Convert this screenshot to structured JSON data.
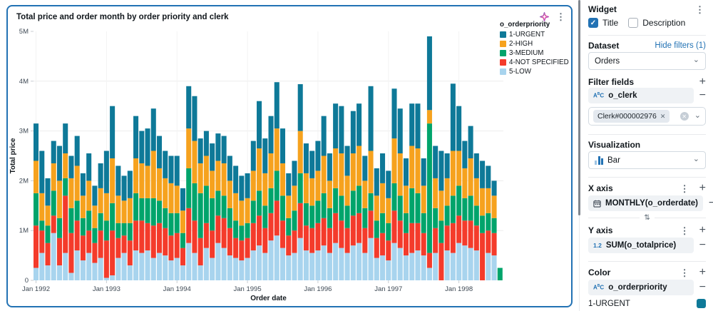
{
  "card": {
    "title": "Total price and order month by order priority and clerk"
  },
  "chart_data": {
    "type": "bar",
    "stacked": true,
    "title": "Total price and order month by order priority and clerk",
    "xlabel": "Order date",
    "ylabel": "Total price",
    "unit": "millions",
    "ylim": [
      0,
      5000000
    ],
    "y_tick_labels": [
      "0",
      "1M",
      "2M",
      "3M",
      "4M",
      "5M"
    ],
    "x_tick_every": 12,
    "x_tick_labels": [
      "Jan 1992",
      "Jan 1993",
      "Jan 1994",
      "Jan 1995",
      "Jan 1996",
      "Jan 1997",
      "Jan 1998"
    ],
    "legend_title": "o_orderpriority",
    "legend_position": "right",
    "grid": true,
    "x": [
      "1992-01",
      "1992-02",
      "1992-03",
      "1992-04",
      "1992-05",
      "1992-06",
      "1992-07",
      "1992-08",
      "1992-09",
      "1992-10",
      "1992-11",
      "1992-12",
      "1993-01",
      "1993-02",
      "1993-03",
      "1993-04",
      "1993-05",
      "1993-06",
      "1993-07",
      "1993-08",
      "1993-09",
      "1993-10",
      "1993-11",
      "1993-12",
      "1994-01",
      "1994-02",
      "1994-03",
      "1994-04",
      "1994-05",
      "1994-06",
      "1994-07",
      "1994-08",
      "1994-09",
      "1994-10",
      "1994-11",
      "1994-12",
      "1995-01",
      "1995-02",
      "1995-03",
      "1995-04",
      "1995-05",
      "1995-06",
      "1995-07",
      "1995-08",
      "1995-09",
      "1995-10",
      "1995-11",
      "1995-12",
      "1996-01",
      "1996-02",
      "1996-03",
      "1996-04",
      "1996-05",
      "1996-06",
      "1996-07",
      "1996-08",
      "1996-09",
      "1996-10",
      "1996-11",
      "1996-12",
      "1997-01",
      "1997-02",
      "1997-03",
      "1997-04",
      "1997-05",
      "1997-06",
      "1997-07",
      "1997-08",
      "1997-09",
      "1997-10",
      "1997-11",
      "1997-12",
      "1998-01",
      "1998-02",
      "1998-03",
      "1998-04",
      "1998-05",
      "1998-06",
      "1998-07",
      "1998-08"
    ],
    "stack_bottom_to_top": [
      "5-LOW",
      "4-NOT SPECIFIED",
      "3-MEDIUM",
      "2-HIGH",
      "1-URGENT"
    ],
    "series": [
      {
        "name": "1-URGENT",
        "color": "#0e7998",
        "values": [
          0.75,
          0.85,
          0.55,
          0.45,
          0.7,
          0.6,
          0.45,
          0.6,
          0.45,
          0.55,
          0.4,
          0.5,
          0.85,
          1.05,
          0.6,
          0.5,
          0.55,
          0.85,
          0.65,
          0.75,
          0.85,
          0.65,
          0.55,
          0.55,
          0.6,
          0.45,
          0.85,
          0.9,
          0.5,
          0.5,
          0.55,
          0.55,
          0.55,
          0.5,
          0.55,
          0.5,
          0.5,
          0.6,
          0.95,
          0.7,
          0.75,
          0.93,
          0.7,
          0.45,
          0.5,
          0.94,
          0.6,
          0.55,
          0.6,
          0.8,
          0.55,
          0.9,
          0.95,
          0.6,
          0.85,
          0.85,
          0.5,
          1.3,
          0.55,
          0.6,
          0.55,
          1.0,
          0.9,
          0.55,
          0.85,
          0.9,
          0.55,
          1.48,
          0.65,
          0.8,
          0.5,
          1.35,
          0.9,
          0.55,
          0.65,
          0.5,
          0.55,
          0.45,
          0.3,
          0.0
        ]
      },
      {
        "name": "2-HIGH",
        "color": "#f6a21e",
        "values": [
          0.65,
          0.55,
          0.4,
          0.55,
          0.75,
          0.5,
          0.6,
          0.7,
          0.45,
          0.6,
          0.45,
          0.5,
          0.55,
          0.9,
          0.55,
          0.45,
          0.5,
          0.7,
          0.7,
          0.65,
          0.95,
          0.65,
          0.6,
          0.6,
          0.55,
          0.45,
          0.8,
          0.85,
          0.6,
          0.6,
          0.55,
          0.6,
          0.65,
          0.55,
          0.55,
          0.5,
          0.5,
          0.6,
          0.85,
          0.65,
          0.7,
          0.85,
          0.65,
          0.45,
          0.5,
          0.85,
          0.6,
          0.55,
          0.6,
          0.75,
          0.55,
          0.8,
          0.85,
          0.6,
          0.75,
          0.8,
          0.55,
          0.85,
          0.5,
          0.6,
          0.5,
          0.9,
          0.85,
          0.55,
          0.85,
          0.9,
          0.55,
          0.27,
          0.6,
          0.6,
          0.55,
          0.9,
          0.7,
          0.6,
          0.75,
          0.55,
          0.55,
          0.5,
          0.45,
          0.0
        ]
      },
      {
        "name": "3-MEDIUM",
        "color": "#00a46b",
        "values": [
          0.65,
          0.2,
          0.35,
          0.5,
          0.4,
          0.35,
          0.5,
          0.4,
          0.35,
          0.4,
          0.3,
          0.35,
          0.4,
          0.55,
          0.3,
          0.25,
          0.35,
          0.55,
          0.45,
          0.5,
          0.55,
          0.45,
          0.4,
          0.45,
          0.4,
          0.3,
          0.8,
          0.75,
          0.9,
          0.75,
          0.65,
          0.5,
          0.45,
          0.4,
          0.35,
          0.3,
          0.3,
          0.45,
          0.5,
          0.45,
          0.5,
          0.6,
          0.5,
          0.35,
          0.4,
          0.6,
          0.45,
          0.45,
          0.45,
          0.5,
          0.4,
          0.5,
          0.5,
          0.45,
          0.5,
          0.55,
          0.4,
          0.35,
          0.35,
          0.4,
          0.35,
          0.55,
          0.5,
          0.4,
          0.7,
          0.6,
          0.4,
          2.6,
          0.4,
          0.45,
          0.4,
          0.55,
          0.6,
          0.45,
          0.5,
          0.4,
          0.35,
          0.35,
          0.3,
          0.25
        ]
      },
      {
        "name": "4-NOT SPECIFIED",
        "color": "#f43b2b",
        "values": [
          0.85,
          0.45,
          0.45,
          0.35,
          0.55,
          1.15,
          0.8,
          0.6,
          0.5,
          0.45,
          0.4,
          0.55,
          0.75,
          0.9,
          0.4,
          0.35,
          0.5,
          0.6,
          0.65,
          0.55,
          0.65,
          0.6,
          0.55,
          0.5,
          0.5,
          0.35,
          0.7,
          0.65,
          0.55,
          0.5,
          0.55,
          0.55,
          0.6,
          0.55,
          0.4,
          0.4,
          0.4,
          0.55,
          0.6,
          0.5,
          0.55,
          0.7,
          0.55,
          0.4,
          0.45,
          0.7,
          0.5,
          0.5,
          0.55,
          0.55,
          0.5,
          0.6,
          0.55,
          0.5,
          0.6,
          0.6,
          0.5,
          0.55,
          0.4,
          0.45,
          0.4,
          0.65,
          0.55,
          0.45,
          0.6,
          0.55,
          0.45,
          0.3,
          0.5,
          0.75,
          0.5,
          0.6,
          0.55,
          0.5,
          0.55,
          0.5,
          0.95,
          0.45,
          0.45,
          0.0
        ]
      },
      {
        "name": "5-LOW",
        "color": "#a8d4ee",
        "values": [
          0.25,
          0.55,
          0.3,
          0.95,
          0.3,
          0.55,
          0.15,
          0.6,
          0.4,
          0.55,
          0.35,
          0.45,
          0.05,
          0.1,
          0.45,
          0.55,
          0.3,
          0.6,
          0.55,
          0.6,
          0.45,
          0.55,
          0.5,
          0.4,
          0.45,
          0.3,
          0.75,
          0.55,
          0.3,
          0.65,
          0.45,
          0.75,
          0.65,
          0.5,
          0.45,
          0.4,
          0.45,
          0.6,
          0.7,
          0.55,
          0.8,
          0.9,
          0.65,
          0.5,
          0.55,
          0.85,
          0.6,
          0.55,
          0.6,
          0.7,
          0.55,
          0.75,
          0.65,
          0.55,
          0.7,
          0.75,
          0.55,
          0.85,
          0.45,
          0.5,
          0.4,
          0.75,
          0.65,
          0.5,
          0.55,
          0.6,
          0.5,
          0.25,
          0.55,
          0.0,
          0.6,
          0.55,
          0.75,
          0.7,
          0.65,
          0.6,
          0.0,
          0.55,
          0.5,
          0.0
        ]
      }
    ]
  },
  "panel": {
    "widget": {
      "label": "Widget",
      "title_label": "Title",
      "description_label": "Description"
    },
    "dataset": {
      "label": "Dataset",
      "link": "Hide filters (1)",
      "value": "Orders"
    },
    "filters": {
      "label": "Filter fields",
      "field": "o_clerk",
      "chip": "Clerk#000002976"
    },
    "visualization": {
      "label": "Visualization",
      "value": "Bar"
    },
    "x_axis": {
      "label": "X axis",
      "field": "MONTHLY(o_orderdate)"
    },
    "y_axis": {
      "label": "Y axis",
      "field": "SUM(o_totalprice)",
      "icon_text": "1.2"
    },
    "color": {
      "label": "Color",
      "field": "o_orderpriority",
      "first_value": "1-URGENT"
    }
  },
  "accent": {
    "blue": "#2272b4"
  }
}
